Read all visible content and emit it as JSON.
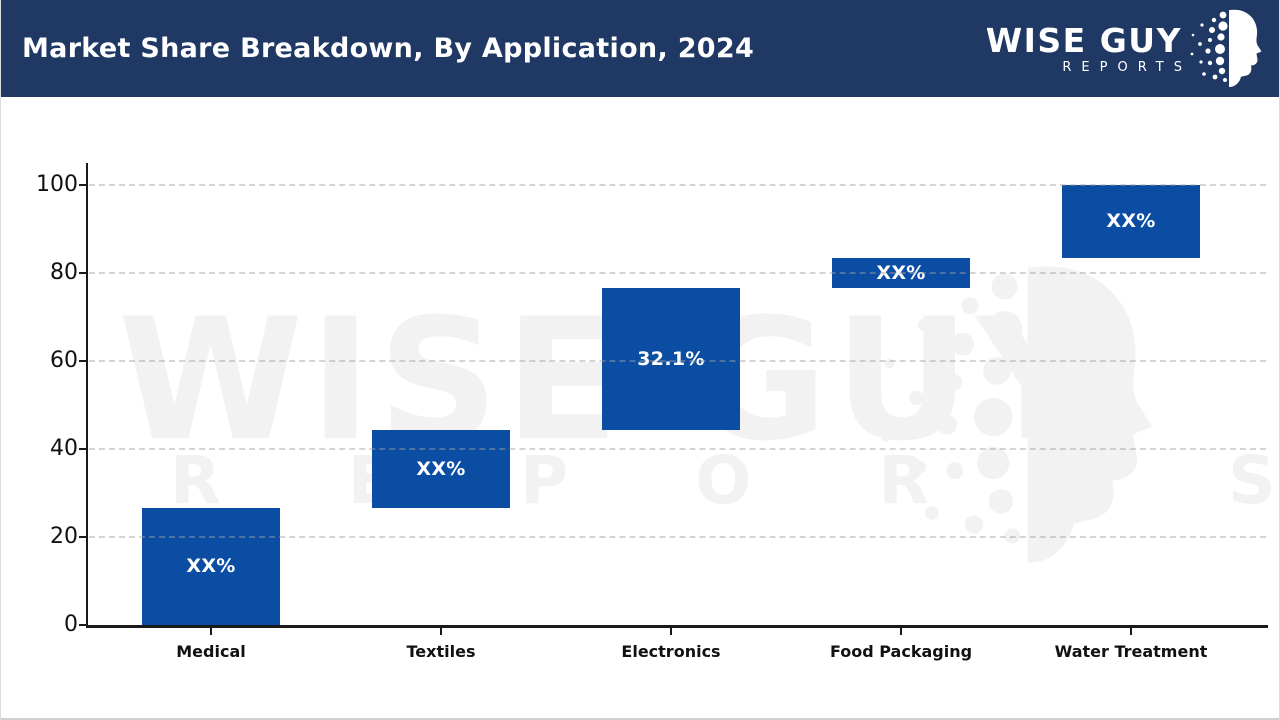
{
  "header": {
    "title": "Market Share Breakdown, By Application, 2024",
    "logo": {
      "line1": "WISE GUY",
      "line2": "REPORTS"
    }
  },
  "watermark": {
    "line1": "WISE GUY",
    "line2": "R E P O R T S"
  },
  "colors": {
    "header_bg": "#1f3864",
    "bar": "#0b4da2",
    "bar_label": "#ffffff",
    "watermark": "#f2f2f2",
    "axis": "#1a1a1a"
  },
  "chart_data": {
    "type": "bar",
    "subtype": "waterfall",
    "title": "Market Share Breakdown, By Application, 2024",
    "xlabel": "",
    "ylabel": "",
    "ylim": [
      0,
      100
    ],
    "yticks": [
      0,
      20,
      40,
      60,
      80,
      100
    ],
    "grid": "horizontal-dashed",
    "legend": "none",
    "categories": [
      "Medical",
      "Textiles",
      "Electronics",
      "Food Packaging",
      "Water Treatment"
    ],
    "segments": [
      {
        "category": "Medical",
        "start": 0,
        "end": 26.6,
        "label": "XX%"
      },
      {
        "category": "Textiles",
        "start": 26.6,
        "end": 44.4,
        "label": "XX%"
      },
      {
        "category": "Electronics",
        "start": 44.4,
        "end": 76.5,
        "label": "32.1%"
      },
      {
        "category": "Food Packaging",
        "start": 76.5,
        "end": 83.5,
        "label": "XX%"
      },
      {
        "category": "Water Treatment",
        "start": 83.5,
        "end": 100,
        "label": "XX%"
      }
    ],
    "bar_color": "#0b4da2",
    "label_color": "#ffffff"
  }
}
